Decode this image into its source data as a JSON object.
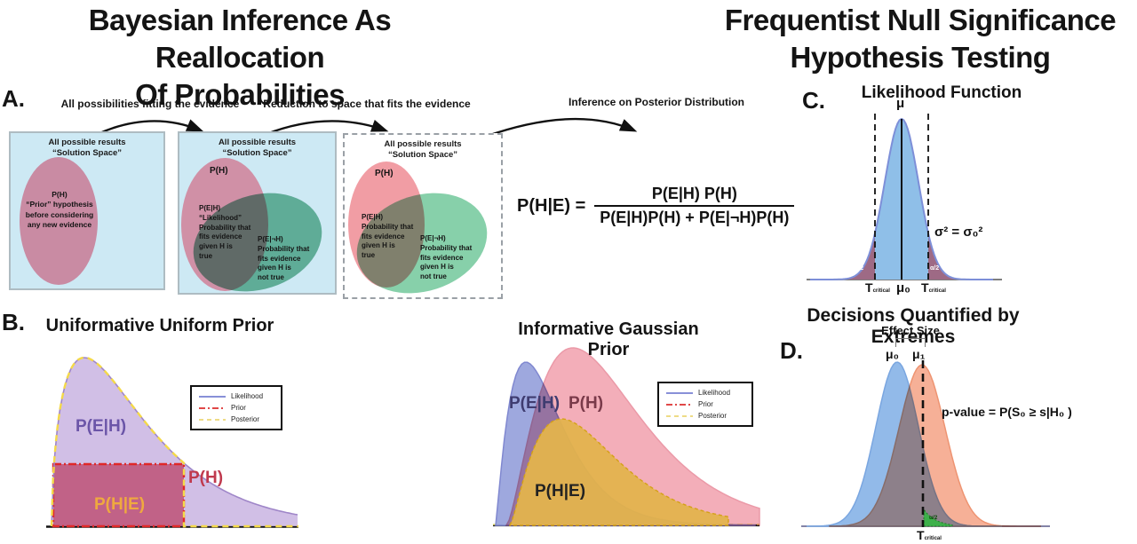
{
  "titles": {
    "bayesian": "Bayesian Inference As Reallocation\nOf Probabilities",
    "frequentist": "Frequentist Null Significance\nHypothesis Testing"
  },
  "panels": {
    "a": "A.",
    "b": "B.",
    "c": "C.",
    "d": "D."
  },
  "panel_a": {
    "arrow1": "All possibilities fitting the evidence",
    "arrow2": "Reduction to space that fits the evidence",
    "arrow3": "Inference on Posterior Distribution",
    "solution_space": "All possible results\n“Solution Space”",
    "box1_ellipse": "P(H)\n“Prior” hypothesis\nbefore considering\nany new evidence",
    "p_h": "P(H)",
    "box2_overlap": "P(E|H)\n“Likelihood”\nProbability that\nfits evidence\ngiven H is\ntrue",
    "box3_overlap": "P(E|H)\nProbability that\nfits evidence\ngiven H is\ntrue",
    "not_h": "P(E|¬H)\nProbability that\nfits evidence\ngiven H is\nnot true"
  },
  "formula": {
    "lhs": "P(H|E) =",
    "num": "P(E|H) P(H)",
    "den": "P(E|H)P(H) + P(E|¬H)P(H)"
  },
  "panel_b": {
    "left_title": "Uniformative Uniform Prior",
    "right_title": "Informative Gaussian Prior",
    "likelihood_label": "P(E|H)",
    "prior_label": "P(H)",
    "posterior_label": "P(H|E)",
    "legend": {
      "likelihood": "Likelihood",
      "prior": "Prior",
      "posterior": "Posterior"
    }
  },
  "panel_c": {
    "title": "Likelihood Function",
    "mu": "μ",
    "sigma": "σ² = σ₀²",
    "alpha": "α/2",
    "t": "T",
    "t_sub": "critical",
    "mu0": "μ₀"
  },
  "panel_d": {
    "title": "Decisions Quantified by Extremes",
    "effect_size": "Effect Size",
    "mu0": "μ₀",
    "mu1": "μ₁",
    "p_value": "p-value = P(S₀ ≥ s|H₀ )",
    "alpha": "α/2",
    "t": "T",
    "t_sub": "critical"
  },
  "colors": {
    "box_bg": "#cde9f4",
    "prior_pink": "#d08ba1",
    "evidence_green": "#54ab86",
    "likelihood_blue": "#8cb6e8",
    "tail_mauve": "#9e6a85",
    "posterior_gold": "#e3b34d",
    "alt_salmon": "#f4a285",
    "alpha_green": "#3db04a"
  }
}
